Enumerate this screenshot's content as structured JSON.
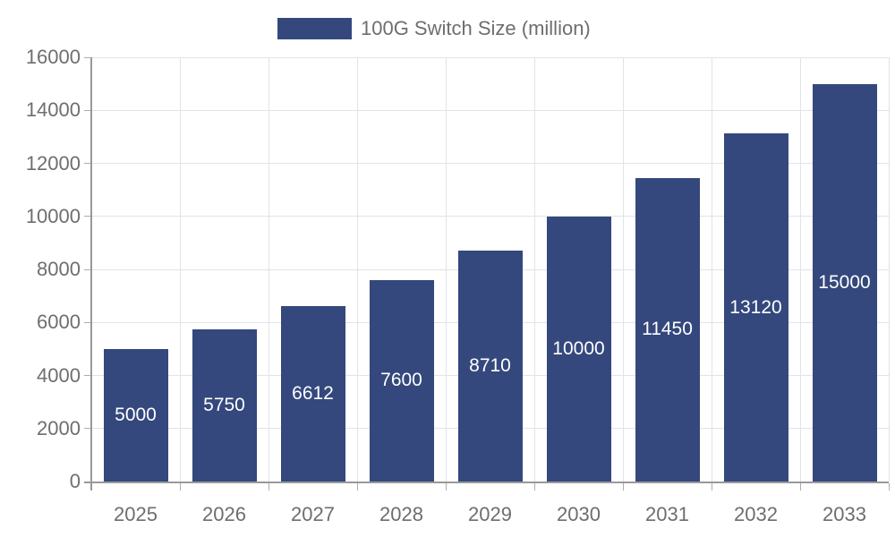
{
  "legend": {
    "label": "100G Switch Size (million)"
  },
  "chart_data": {
    "type": "bar",
    "title": "",
    "categories": [
      "2025",
      "2026",
      "2027",
      "2028",
      "2029",
      "2030",
      "2031",
      "2032",
      "2033"
    ],
    "series": [
      {
        "name": "100G Switch Size (million)",
        "values": [
          5000,
          5750,
          6612,
          7600,
          8710,
          10000,
          11450,
          13120,
          15000
        ]
      }
    ],
    "data_labels": [
      5000,
      5750,
      6612,
      7600,
      8710,
      10000,
      11450,
      13120,
      15000
    ],
    "xlabel": "",
    "ylabel": "",
    "ylim": [
      0,
      16000
    ],
    "ytick_step": 2000,
    "yticks": [
      0,
      2000,
      4000,
      6000,
      8000,
      10000,
      12000,
      14000,
      16000
    ],
    "grid": true,
    "legend_position": "top-center",
    "colors": {
      "bar": "#34487D",
      "bar_label": "#FFFFFF",
      "axis_text": "#6E6E6E",
      "axis_line": "#999999",
      "tick": "#ACACAC",
      "gridline": "#E1E3EA",
      "legend_text": "#6E6E6E",
      "background": "#FFFFFF"
    }
  }
}
